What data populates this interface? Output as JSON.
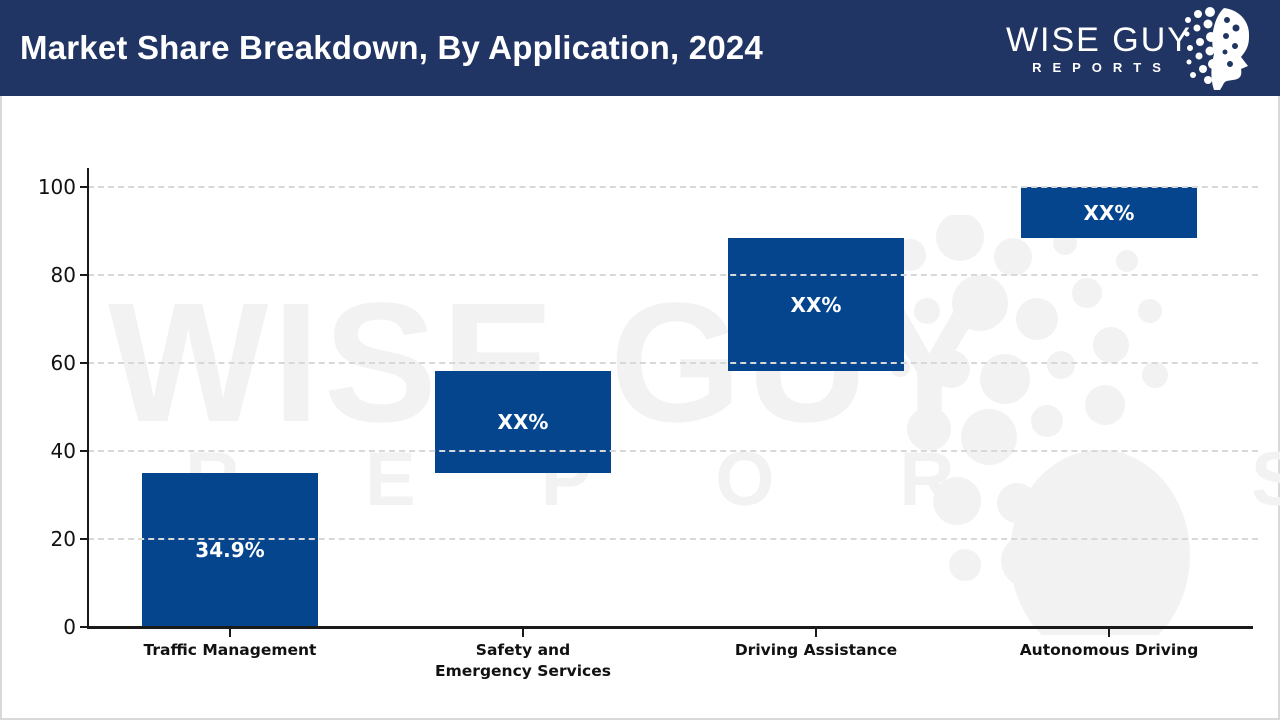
{
  "header": {
    "title": "Market Share Breakdown, By Application, 2024",
    "logo_line1": "WISE GUY",
    "logo_line2": "REPORTS",
    "bg_color": "#213564"
  },
  "watermark": {
    "line1": "WISE GUY",
    "line2": "R E P O R T S"
  },
  "chart_data": {
    "type": "bar",
    "subtype": "waterfall-segmented",
    "title": "Market Share Breakdown, By Application, 2024",
    "categories": [
      [
        "Traffic Management"
      ],
      [
        "Safety and",
        "Emergency Services"
      ],
      [
        "Driving Assistance"
      ],
      [
        "Autonomous Driving"
      ]
    ],
    "segments": [
      {
        "category": "Traffic Management",
        "label": "34.9%",
        "start": 0,
        "end": 34.9
      },
      {
        "category": "Safety and Emergency Services",
        "label": "XX%",
        "start": 34.9,
        "end": 58.1
      },
      {
        "category": "Driving Assistance",
        "label": "XX%",
        "start": 58.1,
        "end": 88.4
      },
      {
        "category": "Autonomous Driving",
        "label": "XX%",
        "start": 88.4,
        "end": 100
      }
    ],
    "yticks": [
      0,
      20,
      40,
      60,
      80,
      100
    ],
    "ylim": [
      0,
      104
    ],
    "xlabel": "",
    "ylabel": "",
    "grid": "horizontal-dashed",
    "legend": "none",
    "bar_color": "#05458E",
    "bar_label_color": "#ffffff",
    "axis_color": "#1a1a1a",
    "gridline_color": "#d8d8d8"
  }
}
